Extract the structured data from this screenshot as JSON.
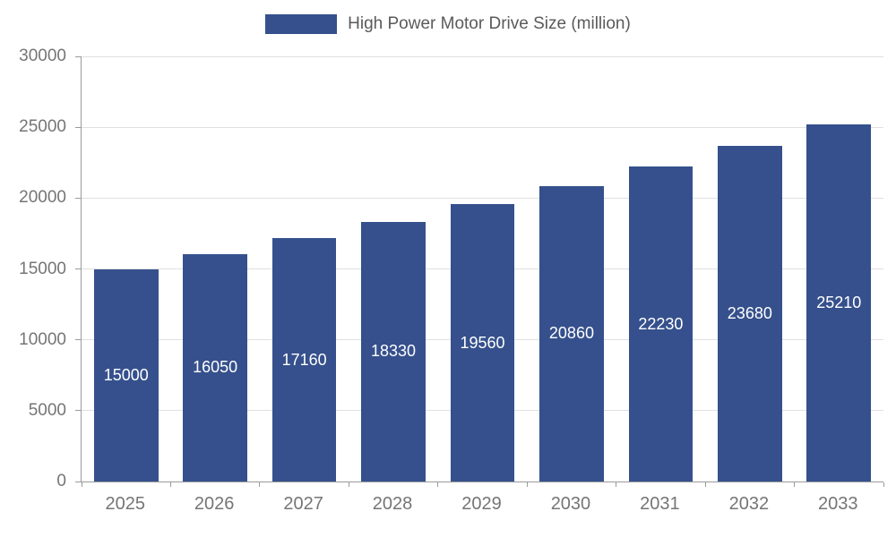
{
  "chart_data": {
    "type": "bar",
    "title": "",
    "legend": {
      "label": "High Power Motor Drive Size (million)",
      "position": "top"
    },
    "categories": [
      "2025",
      "2026",
      "2027",
      "2028",
      "2029",
      "2030",
      "2031",
      "2032",
      "2033"
    ],
    "series": [
      {
        "name": "High Power Motor Drive Size (million)",
        "values": [
          15000,
          16050,
          17160,
          18330,
          19560,
          20860,
          22230,
          23680,
          25210
        ]
      }
    ],
    "xlabel": "",
    "ylabel": "",
    "ylim": [
      0,
      30000
    ],
    "ytick_interval": 5000,
    "yticks": [
      0,
      5000,
      10000,
      15000,
      20000,
      25000,
      30000
    ],
    "grid": true,
    "value_labels": "inside-center",
    "colors": {
      "bar": "#35508C",
      "bar_value_label": "#ffffff",
      "axis_label": "#757575",
      "axis_line": "#9a9a9a",
      "gridline": "#e0e0e0",
      "legend_text": "#5a5a5a",
      "background": "#ffffff"
    }
  }
}
